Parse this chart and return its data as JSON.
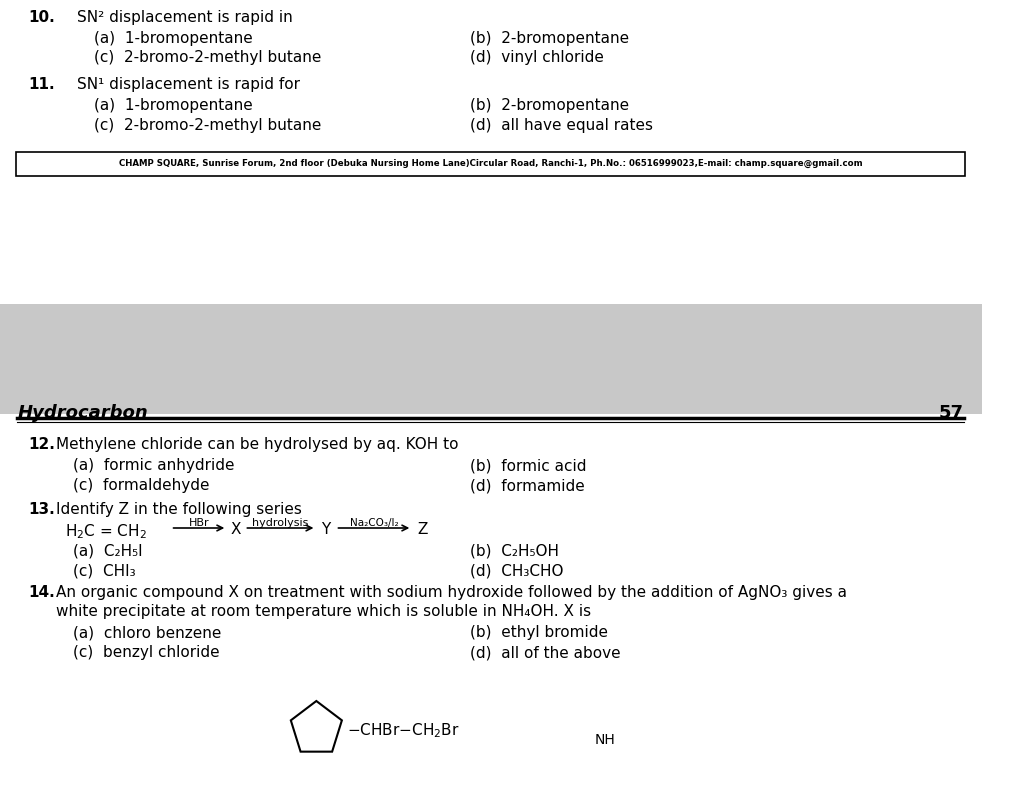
{
  "bg_color": "#ffffff",
  "footer_text": "CHAMP SQUARE, Sunrise Forum, 2nd floor (Debuka Nursing Home Lane)Circular Road, Ranchi-1, Ph.No.: 06516999023,E-mail: champ.square@gmail.com",
  "header_italic": "Hydrocarbon",
  "header_page": "57",
  "q10_text": "SN² displacement is rapid in",
  "q10_a": "1-bromopentane",
  "q10_b": "2-bromopentane",
  "q10_c": "2-bromo-2-methyl butane",
  "q10_d": "vinyl chloride",
  "q11_text": "SN¹ displacement is rapid for",
  "q11_a": "1-bromopentane",
  "q11_b": "2-bromopentane",
  "q11_c": "2-bromo-2-methyl butane",
  "q11_d": "all have equal rates",
  "q12_text": "Methylene chloride can be hydrolysed by aq. KOH to",
  "q12_a": "formic anhydride",
  "q12_b": "formic acid",
  "q12_c": "formaldehyde",
  "q12_d": "formamide",
  "q13_text": "Identify Z in the following series",
  "q13_a": "C₂H₅I",
  "q13_b": "C₂H₅OH",
  "q13_c": "CHI₃",
  "q13_d": "CH₃CHO",
  "q14_text_1": "An organic compound X on treatment with sodium hydroxide followed by the addition of AgNO₃ gives a",
  "q14_text_2": "white precipitate at room temperature which is soluble in NH₄OH. X is",
  "q14_a": "chloro benzene",
  "q14_b": "ethyl bromide",
  "q14_c": "benzyl chloride",
  "q14_d": "all of the above"
}
